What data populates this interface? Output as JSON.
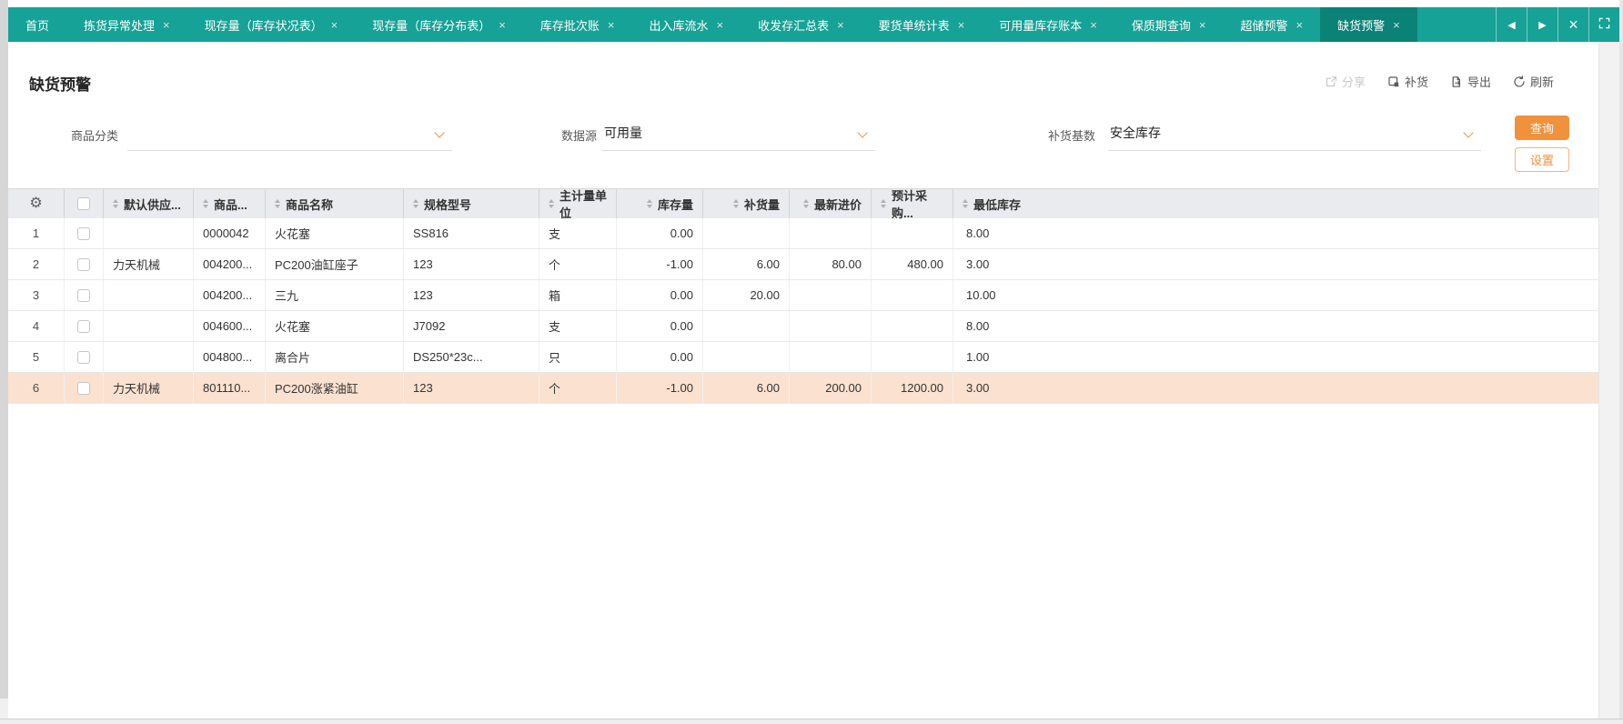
{
  "tabbar": {
    "close_glyph": "×",
    "tabs": [
      {
        "label": "首页",
        "closable": false,
        "active": false
      },
      {
        "label": "拣货异常处理",
        "closable": true,
        "active": false
      },
      {
        "label": "现存量（库存状况表）",
        "closable": true,
        "active": false
      },
      {
        "label": "现存量（库存分布表）",
        "closable": true,
        "active": false
      },
      {
        "label": "库存批次账",
        "closable": true,
        "active": false
      },
      {
        "label": "出入库流水",
        "closable": true,
        "active": false
      },
      {
        "label": "收发存汇总表",
        "closable": true,
        "active": false
      },
      {
        "label": "要货单统计表",
        "closable": true,
        "active": false
      },
      {
        "label": "可用量库存账本",
        "closable": true,
        "active": false
      },
      {
        "label": "保质期查询",
        "closable": true,
        "active": false
      },
      {
        "label": "超储预警",
        "closable": true,
        "active": false
      },
      {
        "label": "缺货预警",
        "closable": true,
        "active": true
      }
    ],
    "controls": [
      {
        "name": "scroll-tabs-left-button",
        "icon": "left-arrow-icon",
        "glyph": "◀"
      },
      {
        "name": "scroll-tabs-right-button",
        "icon": "right-arrow-icon",
        "glyph": "▶"
      },
      {
        "name": "close-tabs-button",
        "icon": "close-icon",
        "glyph": "×"
      },
      {
        "name": "fullscreen-button",
        "icon": "fullscreen-icon",
        "glyph": ""
      }
    ]
  },
  "page": {
    "title": "缺货预警",
    "actions": [
      {
        "name": "share",
        "label": "分享",
        "disabled": true
      },
      {
        "name": "replenish",
        "label": "补货",
        "disabled": false
      },
      {
        "name": "export",
        "label": "导出",
        "disabled": false
      },
      {
        "name": "refresh",
        "label": "刷新",
        "disabled": false
      }
    ]
  },
  "filters": [
    {
      "label": "商品分类",
      "value": ""
    },
    {
      "label": "数据源",
      "value": "可用量"
    },
    {
      "label": "补货基数",
      "value": "安全库存"
    }
  ],
  "buttons": {
    "query": "查询",
    "settings": "设置"
  },
  "table": {
    "columns": [
      {
        "key": "supplier",
        "label": "默认供应...",
        "align": "left",
        "sortable": true
      },
      {
        "key": "code",
        "label": "商品...",
        "align": "left",
        "sortable": true
      },
      {
        "key": "name",
        "label": "商品名称",
        "align": "left",
        "sortable": true
      },
      {
        "key": "spec",
        "label": "规格型号",
        "align": "left",
        "sortable": true
      },
      {
        "key": "unit",
        "label": "主计量单位",
        "align": "left",
        "sortable": true
      },
      {
        "key": "stock",
        "label": "库存量",
        "align": "right",
        "sortable": true
      },
      {
        "key": "replenish",
        "label": "补货量",
        "align": "right",
        "sortable": true
      },
      {
        "key": "price",
        "label": "最新进价",
        "align": "right",
        "sortable": true
      },
      {
        "key": "purchase",
        "label": "预计采购...",
        "align": "right",
        "sortable": true
      },
      {
        "key": "min",
        "label": "最低库存",
        "align": "left",
        "sortable": true
      }
    ],
    "rows": [
      {
        "num": "1",
        "supplier": "",
        "code": "0000042",
        "name": "火花塞",
        "spec": "SS816",
        "unit": "支",
        "stock": "0.00",
        "replenish": "",
        "price": "",
        "purchase": "",
        "min": "8.00",
        "highlight": false
      },
      {
        "num": "2",
        "supplier": "力天机械",
        "code": "004200...",
        "name": "PC200油缸座子",
        "spec": "123",
        "unit": "个",
        "stock": "-1.00",
        "replenish": "6.00",
        "price": "80.00",
        "purchase": "480.00",
        "min": "3.00",
        "highlight": false
      },
      {
        "num": "3",
        "supplier": "",
        "code": "004200...",
        "name": "三九",
        "spec": "123",
        "unit": "箱",
        "stock": "0.00",
        "replenish": "20.00",
        "price": "",
        "purchase": "",
        "min": "10.00",
        "highlight": false
      },
      {
        "num": "4",
        "supplier": "",
        "code": "004600...",
        "name": "火花塞",
        "spec": "J7092",
        "unit": "支",
        "stock": "0.00",
        "replenish": "",
        "price": "",
        "purchase": "",
        "min": "8.00",
        "highlight": false
      },
      {
        "num": "5",
        "supplier": "",
        "code": "004800...",
        "name": "离合片",
        "spec": "DS250*23c...",
        "unit": "只",
        "stock": "0.00",
        "replenish": "",
        "price": "",
        "purchase": "",
        "min": "1.00",
        "highlight": false
      },
      {
        "num": "6",
        "supplier": "力天机械",
        "code": "801110...",
        "name": "PC200涨紧油缸",
        "spec": "123",
        "unit": "个",
        "stock": "-1.00",
        "replenish": "6.00",
        "price": "200.00",
        "purchase": "1200.00",
        "min": "3.00",
        "highlight": true
      }
    ]
  },
  "colors": {
    "accent": "#f0913c",
    "tabbar": "#16a296",
    "tabbar_active": "#0b8276",
    "row_highlight": "#fbe1d0",
    "thead_bg": "#e9ebee"
  }
}
